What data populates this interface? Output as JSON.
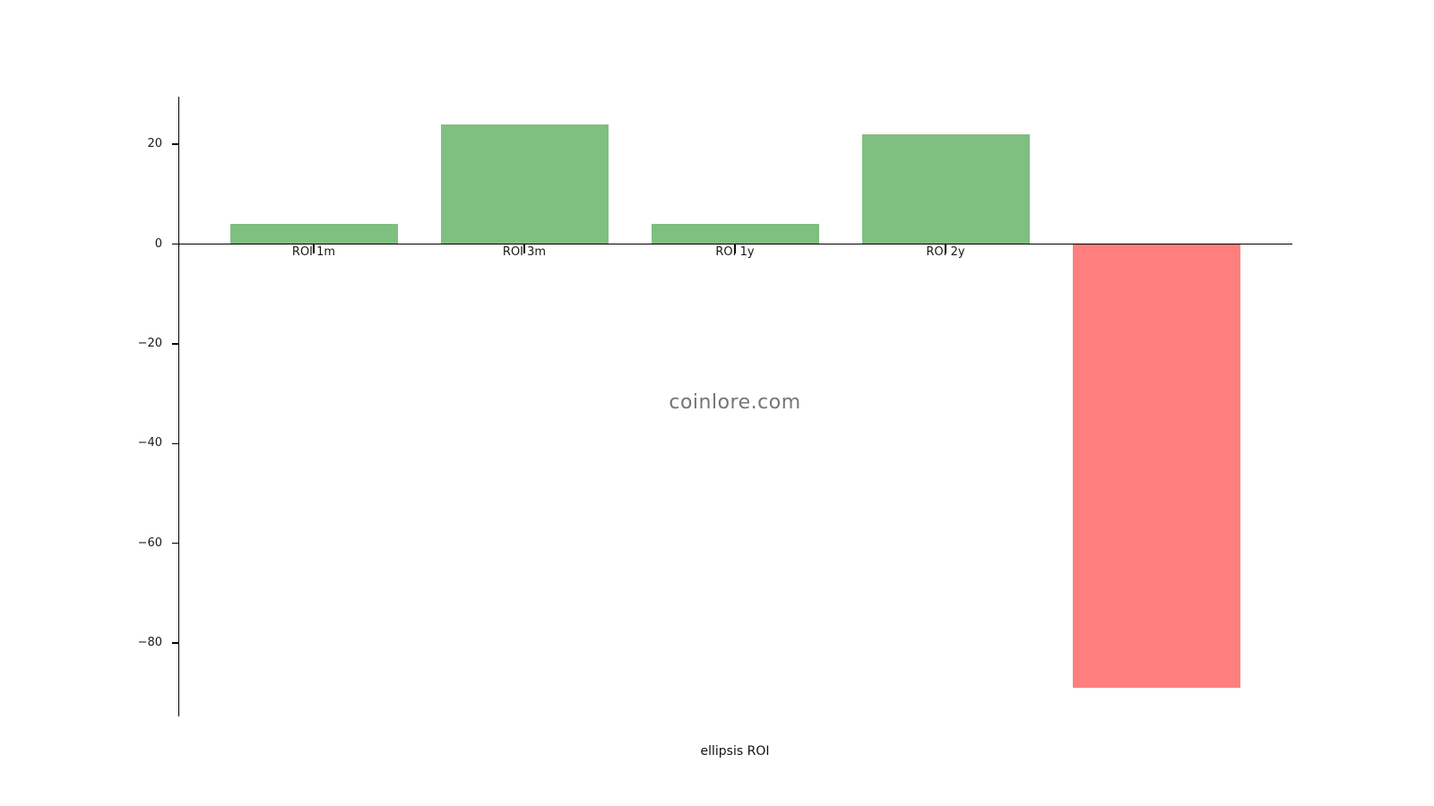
{
  "page": {
    "background": "#ffffff"
  },
  "watermark": {
    "text": "coinlore.com",
    "color": "#757575"
  },
  "chart_data": {
    "type": "bar",
    "title": "ellipsis ROI",
    "title_position": "bottom-center",
    "categories": [
      "ROI 1m",
      "ROI 3m",
      "ROI 1y",
      "ROI 2y",
      ""
    ],
    "values": [
      4,
      24,
      4,
      22,
      -89
    ],
    "bar_colors": [
      "#7fbf7f",
      "#7fbf7f",
      "#7fbf7f",
      "#7fbf7f",
      "#ff7f7f"
    ],
    "positive_color": "#7fbf7f",
    "negative_color": "#ff7f7f",
    "axis_color": "#000000",
    "text_color": "#191919",
    "yticks": [
      20,
      0,
      -20,
      -40,
      -60,
      -80
    ],
    "ytick_labels": [
      "20",
      "0",
      "−20",
      "−40",
      "−60",
      "−80"
    ],
    "ylim": [
      -95,
      29.5
    ],
    "baseline": 0,
    "grid": false,
    "legend": false,
    "xlabel": "",
    "ylabel": ""
  }
}
